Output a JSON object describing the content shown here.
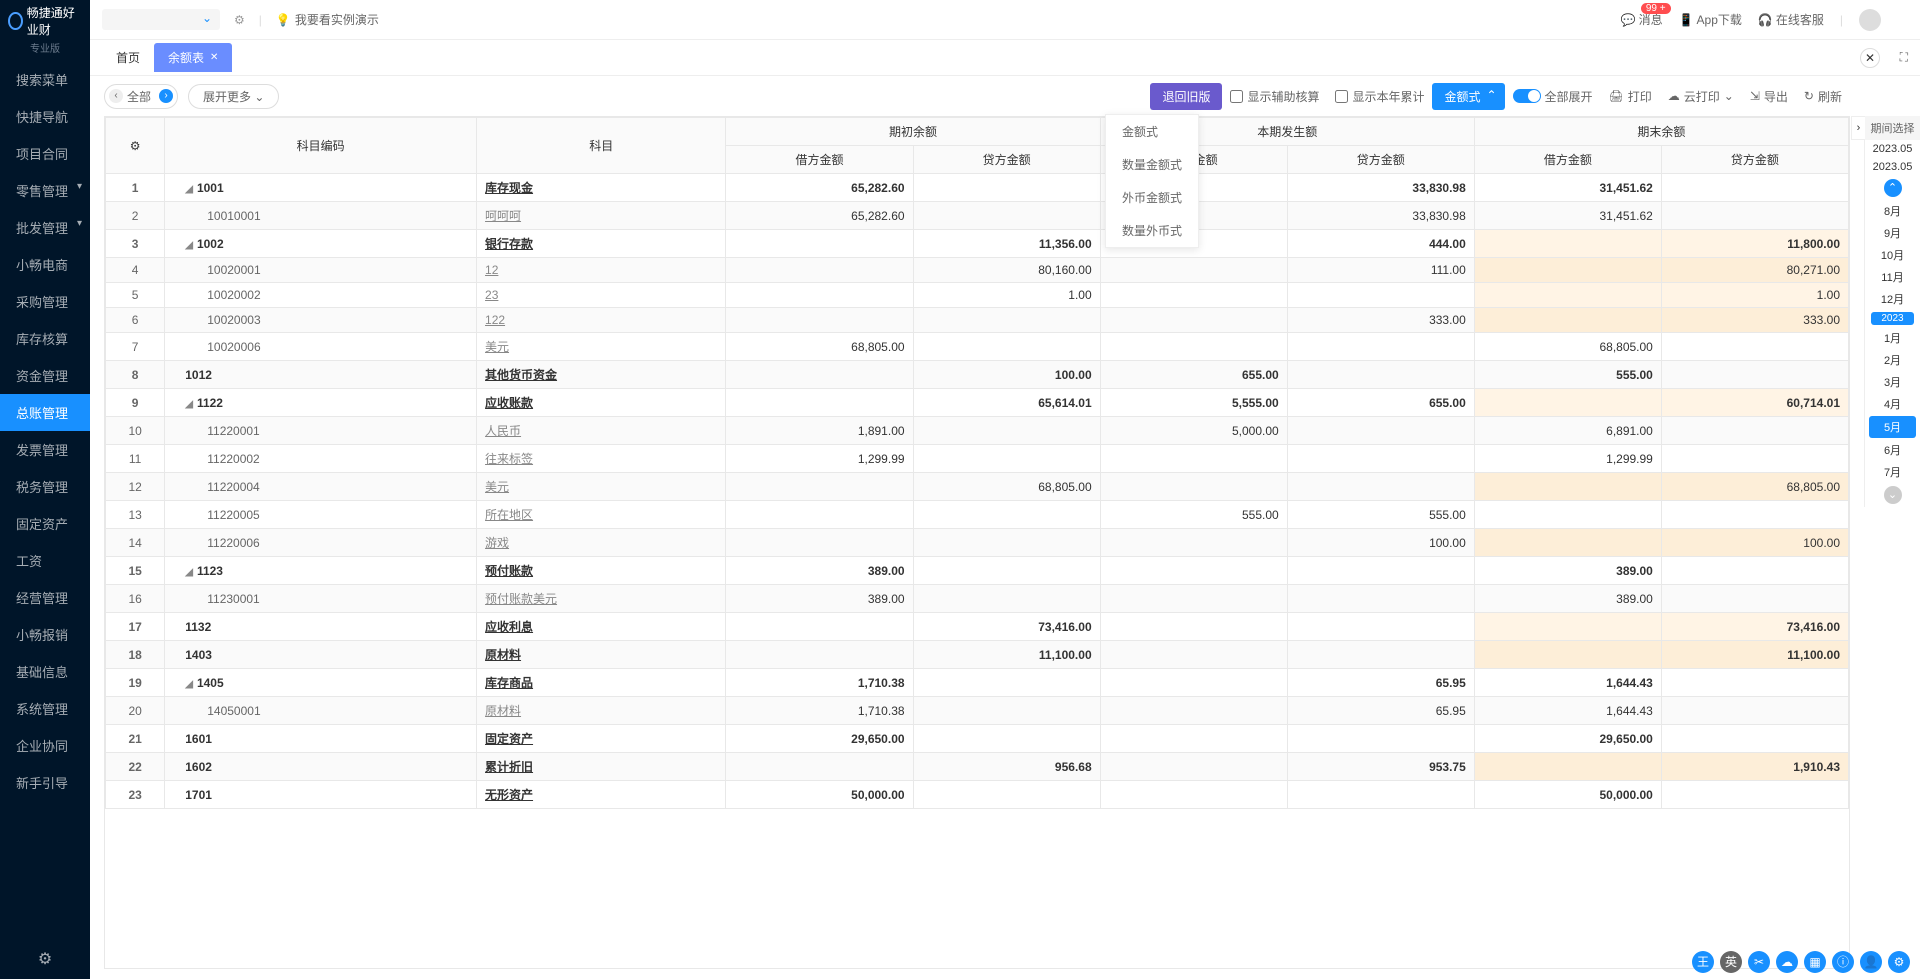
{
  "brand": {
    "name": "畅捷通好业财",
    "edition": "专业版"
  },
  "sidebar": {
    "items": [
      {
        "label": "搜索菜单"
      },
      {
        "label": "快捷导航"
      },
      {
        "label": "项目合同"
      },
      {
        "label": "零售管理",
        "sub": true
      },
      {
        "label": "批发管理",
        "sub": true
      },
      {
        "label": "小畅电商"
      },
      {
        "label": "采购管理"
      },
      {
        "label": "库存核算"
      },
      {
        "label": "资金管理"
      },
      {
        "label": "总账管理",
        "active": true
      },
      {
        "label": "发票管理"
      },
      {
        "label": "税务管理"
      },
      {
        "label": "固定资产"
      },
      {
        "label": "工资"
      },
      {
        "label": "经营管理"
      },
      {
        "label": "小畅报销"
      },
      {
        "label": "基础信息"
      },
      {
        "label": "系统管理"
      },
      {
        "label": "企业协同"
      },
      {
        "label": "新手引导"
      }
    ]
  },
  "header": {
    "demo": "我要看实例演示",
    "right": [
      {
        "label": "消息",
        "badge": "99 +"
      },
      {
        "label": "App下载"
      },
      {
        "label": "在线客服"
      }
    ]
  },
  "tabs": {
    "home": "首页",
    "active": "余额表"
  },
  "toolbar": {
    "pill_all": "全部",
    "expand_more": "展开更多",
    "back": "退回旧版",
    "chk1": "显示辅助核算",
    "chk2": "显示本年累计",
    "mode": "金额式",
    "toggle": "全部展开",
    "print": "打印",
    "cloud": "云打印",
    "export": "导出",
    "refresh": "刷新",
    "dropdown": [
      "金额式",
      "数量金额式",
      "外币金额式",
      "数量外币式"
    ]
  },
  "period": {
    "title": "期间选择",
    "from": "2023.05",
    "to": "2023.05",
    "months_top": [
      "8月",
      "9月",
      "10月",
      "11月",
      "12月"
    ],
    "year": "2023",
    "months_bot": [
      "1月",
      "2月",
      "3月",
      "4月",
      "5月",
      "6月",
      "7月"
    ],
    "current": "5月"
  },
  "table": {
    "gear": "⚙",
    "h_code": "科目编码",
    "h_name": "科目",
    "g1": "期初余额",
    "g2": "本期发生额",
    "g3": "期末余额",
    "h_debit": "借方金额",
    "h_credit": "贷方金额",
    "rows": [
      {
        "i": 1,
        "lvl": 0,
        "exp": true,
        "code": "1001",
        "name": "库存现金",
        "d1": "65,282.60",
        "c1": "",
        "d2": "",
        "c2": "33,830.98",
        "d3": "31,451.62",
        "c3": ""
      },
      {
        "i": 2,
        "lvl": 1,
        "code": "10010001",
        "name": "呵呵呵",
        "d1": "65,282.60",
        "c1": "",
        "d2": "",
        "c2": "33,830.98",
        "d3": "31,451.62",
        "c3": ""
      },
      {
        "i": 3,
        "lvl": 0,
        "exp": true,
        "code": "1002",
        "name": "银行存款",
        "d1": "",
        "c1": "11,356.00",
        "d2": "",
        "c2": "444.00",
        "d3": "",
        "c3": "11,800.00",
        "hl": true
      },
      {
        "i": 4,
        "lvl": 1,
        "code": "10020001",
        "name": "12",
        "d1": "",
        "c1": "80,160.00",
        "d2": "",
        "c2": "111.00",
        "d3": "",
        "c3": "80,271.00",
        "hl": true
      },
      {
        "i": 5,
        "lvl": 1,
        "code": "10020002",
        "name": "23",
        "d1": "",
        "c1": "1.00",
        "d2": "",
        "c2": "",
        "d3": "",
        "c3": "1.00",
        "hl": true
      },
      {
        "i": 6,
        "lvl": 1,
        "code": "10020003",
        "name": "122",
        "d1": "",
        "c1": "",
        "d2": "",
        "c2": "333.00",
        "d3": "",
        "c3": "333.00",
        "hl": true
      },
      {
        "i": 7,
        "lvl": 1,
        "code": "10020006",
        "name": "美元",
        "d1": "68,805.00",
        "c1": "",
        "d2": "",
        "c2": "",
        "d3": "68,805.00",
        "c3": ""
      },
      {
        "i": 8,
        "lvl": 0,
        "code": "1012",
        "name": "其他货币资金",
        "d1": "",
        "c1": "100.00",
        "d2": "655.00",
        "c2": "",
        "d3": "555.00",
        "c3": ""
      },
      {
        "i": 9,
        "lvl": 0,
        "exp": true,
        "code": "1122",
        "name": "应收账款",
        "d1": "",
        "c1": "65,614.01",
        "d2": "5,555.00",
        "c2": "655.00",
        "d3": "",
        "c3": "60,714.01",
        "hl": true
      },
      {
        "i": 10,
        "lvl": 1,
        "code": "11220001",
        "name": "人民币",
        "d1": "1,891.00",
        "c1": "",
        "d2": "5,000.00",
        "c2": "",
        "d3": "6,891.00",
        "c3": ""
      },
      {
        "i": 11,
        "lvl": 1,
        "code": "11220002",
        "name": "往来标签",
        "d1": "1,299.99",
        "c1": "",
        "d2": "",
        "c2": "",
        "d3": "1,299.99",
        "c3": ""
      },
      {
        "i": 12,
        "lvl": 1,
        "code": "11220004",
        "name": "美元",
        "d1": "",
        "c1": "68,805.00",
        "d2": "",
        "c2": "",
        "d3": "",
        "c3": "68,805.00",
        "hl": true
      },
      {
        "i": 13,
        "lvl": 1,
        "code": "11220005",
        "name": "所在地区",
        "d1": "",
        "c1": "",
        "d2": "555.00",
        "c2": "555.00",
        "d3": "",
        "c3": ""
      },
      {
        "i": 14,
        "lvl": 1,
        "code": "11220006",
        "name": "游戏",
        "d1": "",
        "c1": "",
        "d2": "",
        "c2": "100.00",
        "d3": "",
        "c3": "100.00",
        "hl": true
      },
      {
        "i": 15,
        "lvl": 0,
        "exp": true,
        "code": "1123",
        "name": "预付账款",
        "d1": "389.00",
        "c1": "",
        "d2": "",
        "c2": "",
        "d3": "389.00",
        "c3": ""
      },
      {
        "i": 16,
        "lvl": 1,
        "code": "11230001",
        "name": "预付账款美元",
        "d1": "389.00",
        "c1": "",
        "d2": "",
        "c2": "",
        "d3": "389.00",
        "c3": ""
      },
      {
        "i": 17,
        "lvl": 0,
        "code": "1132",
        "name": "应收利息",
        "d1": "",
        "c1": "73,416.00",
        "d2": "",
        "c2": "",
        "d3": "",
        "c3": "73,416.00",
        "hl": true
      },
      {
        "i": 18,
        "lvl": 0,
        "code": "1403",
        "name": "原材料",
        "d1": "",
        "c1": "11,100.00",
        "d2": "",
        "c2": "",
        "d3": "",
        "c3": "11,100.00",
        "hl": true
      },
      {
        "i": 19,
        "lvl": 0,
        "exp": true,
        "code": "1405",
        "name": "库存商品",
        "d1": "1,710.38",
        "c1": "",
        "d2": "",
        "c2": "65.95",
        "d3": "1,644.43",
        "c3": ""
      },
      {
        "i": 20,
        "lvl": 1,
        "code": "14050001",
        "name": "原材料",
        "d1": "1,710.38",
        "c1": "",
        "d2": "",
        "c2": "65.95",
        "d3": "1,644.43",
        "c3": ""
      },
      {
        "i": 21,
        "lvl": 0,
        "code": "1601",
        "name": "固定资产",
        "d1": "29,650.00",
        "c1": "",
        "d2": "",
        "c2": "",
        "d3": "29,650.00",
        "c3": ""
      },
      {
        "i": 22,
        "lvl": 0,
        "code": "1602",
        "name": "累计折旧",
        "d1": "",
        "c1": "956.68",
        "d2": "",
        "c2": "953.75",
        "d3": "",
        "c3": "1,910.43",
        "hl": true
      },
      {
        "i": 23,
        "lvl": 0,
        "code": "1701",
        "name": "无形资产",
        "d1": "50,000.00",
        "c1": "",
        "d2": "",
        "c2": "",
        "d3": "50,000.00",
        "c3": ""
      }
    ]
  },
  "dock_colors": [
    "#1890ff",
    "#666",
    "#1890ff",
    "#1890ff",
    "#1890ff",
    "#1890ff",
    "#1890ff",
    "#1890ff"
  ]
}
